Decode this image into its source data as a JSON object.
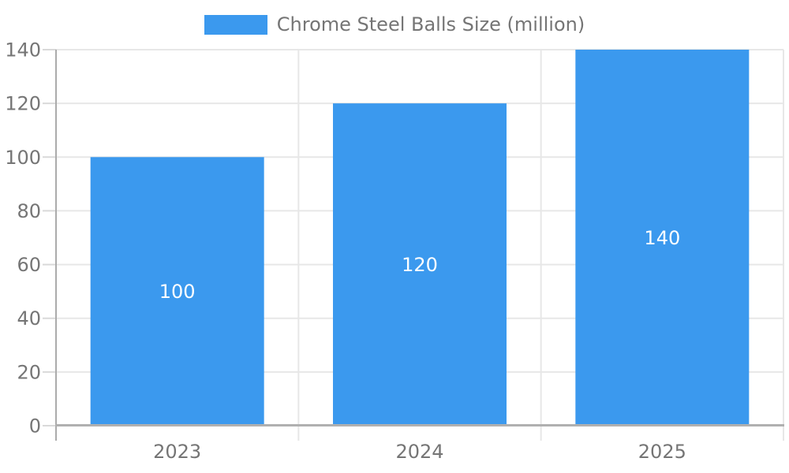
{
  "chart_data": {
    "type": "bar",
    "title": "",
    "categories": [
      "2023",
      "2024",
      "2025"
    ],
    "series": [
      {
        "name": "Chrome Steel Balls Size (million)",
        "values": [
          100,
          120,
          140
        ]
      }
    ],
    "bar_value_labels": [
      "100",
      "120",
      "140"
    ],
    "xlabel": "",
    "ylabel": "",
    "ylim": [
      0,
      140
    ],
    "yticks": [
      0,
      20,
      40,
      60,
      80,
      100,
      120,
      140
    ],
    "grid": "on",
    "legend_position": "top-center"
  },
  "style": {
    "bar_color": "#3B99EE",
    "grid_color": "#E7E7E7",
    "tick_color": "#D9D9D9",
    "y_axis_color": "#ABABAB",
    "x_axis_color": "#B0B0B0",
    "plot_border_color": "#E7E7E7",
    "text_color": "#757575",
    "bar_label_color": "#FFFFFF"
  }
}
